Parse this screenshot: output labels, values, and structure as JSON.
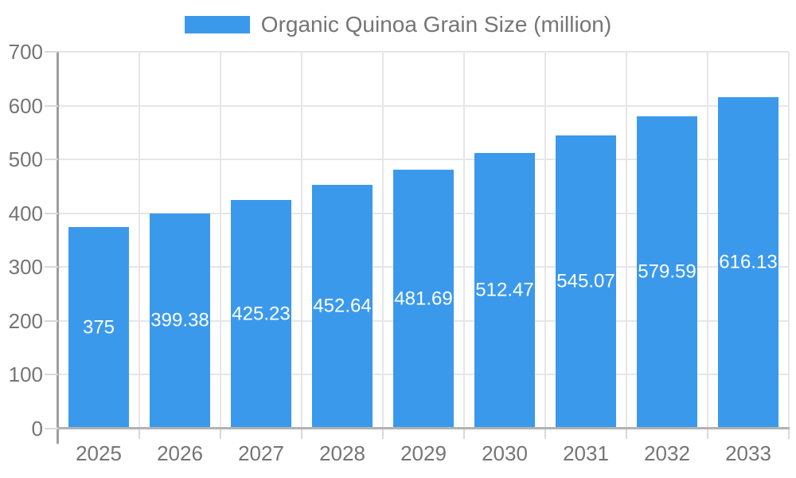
{
  "page": {
    "background": "#ffffff"
  },
  "legend": {
    "label": "Organic Quinoa Grain Size (million)",
    "swatch_color": "#3b99ec",
    "position": "top"
  },
  "chart_data": {
    "type": "bar",
    "title": "Organic Quinoa Grain Size (million)",
    "categories": [
      "2025",
      "2026",
      "2027",
      "2028",
      "2029",
      "2030",
      "2031",
      "2032",
      "2033"
    ],
    "values": [
      375,
      399.38,
      425.23,
      452.64,
      481.69,
      512.47,
      545.07,
      579.59,
      616.13
    ],
    "value_labels": [
      "375",
      "399.38",
      "425.23",
      "452.64",
      "481.69",
      "512.47",
      "545.07",
      "579.59",
      "616.13"
    ],
    "xlabel": "",
    "ylabel": "",
    "ylim": [
      0,
      700
    ],
    "ytick_step": 100,
    "ytick_labels": [
      "0",
      "100",
      "200",
      "300",
      "400",
      "500",
      "600",
      "700"
    ],
    "grid": true,
    "legend_position": "top",
    "colors": {
      "bar": "#3b99ec",
      "value_text": "#ffffff",
      "axis_text": "#757575",
      "grid": "#e6e6e6",
      "tick": "#d9d9d9",
      "y_axis_line": "#9e9e9e",
      "x_axis_line": "#b3b3b3"
    }
  }
}
